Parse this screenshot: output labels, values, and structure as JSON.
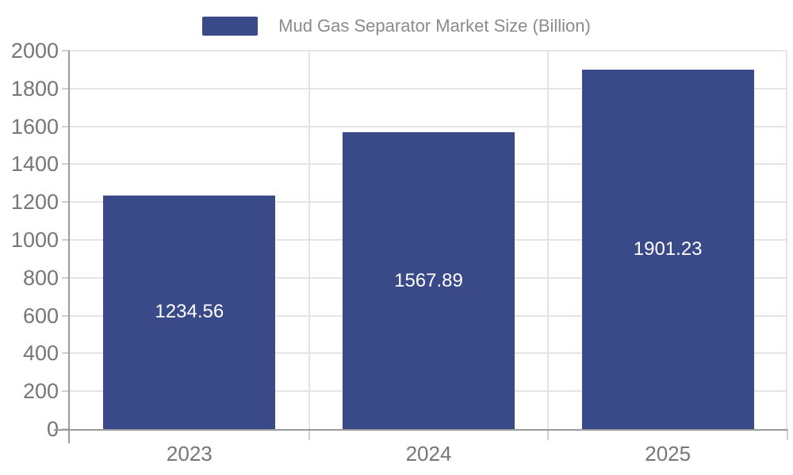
{
  "chart_data": {
    "type": "bar",
    "title": "Mud Gas Separator Market Size (Billion)",
    "categories": [
      "2023",
      "2024",
      "2025"
    ],
    "values": [
      1234.56,
      1567.89,
      1901.23
    ],
    "value_labels": [
      "1234.56",
      "1567.89",
      "1901.23"
    ],
    "xlabel": "",
    "ylabel": "",
    "ylim": [
      0,
      2000
    ],
    "yticks": [
      0,
      200,
      400,
      600,
      800,
      1000,
      1200,
      1400,
      1600,
      1800,
      2000
    ],
    "grid": true,
    "bar_label_position": "inside-center",
    "legend": {
      "position": "top-center",
      "entries": [
        "Mud Gas Separator Market Size (Billion)"
      ]
    },
    "colors": {
      "bar": "#3A4A88",
      "bar_label": "#ffffff",
      "grid_line": "#e4e4e4",
      "axis_line": "#9b9b9b",
      "tick": "#cfcfcf",
      "axis_label": "#767676",
      "legend_text": "#8b8b8b",
      "background": "#ffffff"
    }
  }
}
